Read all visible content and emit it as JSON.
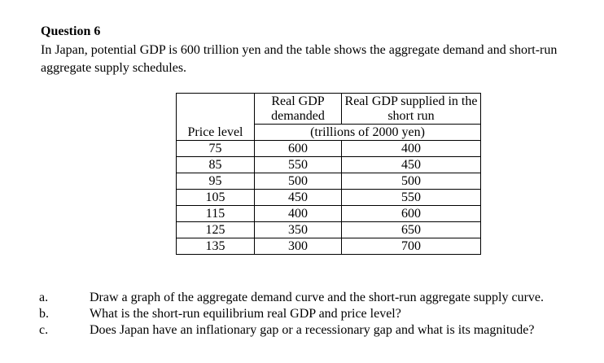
{
  "heading": "Question 6",
  "intro": {
    "line1": "In Japan, potential GDP is 600 trillion yen and the table shows the aggregate demand and short-run",
    "line2": "aggregate supply schedules."
  },
  "table": {
    "price_header": "Price level",
    "demand_header": "Real GDP demanded",
    "supply_header": "Real GDP supplied in the short run",
    "unit_header": "(trillions of 2000 yen)",
    "rows": [
      [
        "75",
        "600",
        "400"
      ],
      [
        "85",
        "550",
        "450"
      ],
      [
        "95",
        "500",
        "500"
      ],
      [
        "105",
        "450",
        "550"
      ],
      [
        "115",
        "400",
        "600"
      ],
      [
        "125",
        "350",
        "650"
      ],
      [
        "135",
        "300",
        "700"
      ]
    ]
  },
  "questions": [
    {
      "letter": "a.",
      "text": "Draw a graph of the aggregate demand curve and the short-run aggregate supply curve."
    },
    {
      "letter": "b.",
      "text": "What is the short-run equilibrium real GDP and price level?"
    },
    {
      "letter": "c.",
      "text": "Does Japan have an inflationary gap or a recessionary gap and what is its magnitude?"
    }
  ]
}
